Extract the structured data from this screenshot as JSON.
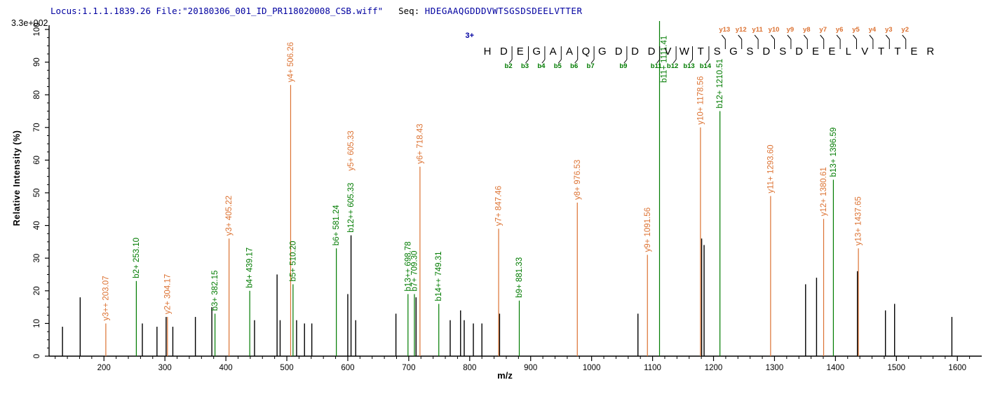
{
  "header": {
    "locus_text": "Locus:1.1.1.1839.26 File:\"20180306_001_ID_PR118020008_CSB.wiff\"",
    "seq_label": "Seq:",
    "seq_value": "HDEGAAQGDDDVWTSGSDSDEELVTTER",
    "max_intensity_label": "3.3e+002"
  },
  "colors": {
    "b_ion": "#007B00",
    "y_ion": "#DC7232",
    "unassigned": "#000000",
    "header_blue": "#0000A0",
    "axis": "#000000"
  },
  "sequence_panel": {
    "charge_label": "3+",
    "residues": [
      "H",
      "D",
      "E",
      "G",
      "A",
      "A",
      "Q",
      "G",
      "D",
      "D",
      "D",
      "V",
      "W",
      "T",
      "S",
      "G",
      "S",
      "D",
      "S",
      "D",
      "E",
      "E",
      "L",
      "V",
      "T",
      "T",
      "E",
      "R"
    ],
    "b_markers": [
      {
        "label": "b2",
        "after_residue": 2
      },
      {
        "label": "b3",
        "after_residue": 3
      },
      {
        "label": "b4",
        "after_residue": 4
      },
      {
        "label": "b5",
        "after_residue": 5
      },
      {
        "label": "b6",
        "after_residue": 6
      },
      {
        "label": "b7",
        "after_residue": 7
      },
      {
        "label": "b9",
        "after_residue": 9
      },
      {
        "label": "b11",
        "after_residue": 11
      },
      {
        "label": "b12",
        "after_residue": 12
      },
      {
        "label": "b13",
        "after_residue": 13
      },
      {
        "label": "b14",
        "after_residue": 14
      }
    ],
    "y_markers": [
      {
        "label": "y13",
        "after_residue": 15
      },
      {
        "label": "y12",
        "after_residue": 16
      },
      {
        "label": "y11",
        "after_residue": 17
      },
      {
        "label": "y10",
        "after_residue": 18
      },
      {
        "label": "y9",
        "after_residue": 19
      },
      {
        "label": "y8",
        "after_residue": 20
      },
      {
        "label": "y7",
        "after_residue": 21
      },
      {
        "label": "y6",
        "after_residue": 22
      },
      {
        "label": "y5",
        "after_residue": 23
      },
      {
        "label": "y4",
        "after_residue": 24
      },
      {
        "label": "y3",
        "after_residue": 25
      },
      {
        "label": "y2",
        "after_residue": 26
      }
    ]
  },
  "chart_data": {
    "type": "bar",
    "subtype": "mass-spectrum-stick-plot",
    "title": "",
    "xlabel": "m/z",
    "ylabel": "Relative  Intensity (%)",
    "xlim": [
      110,
      1640
    ],
    "ylim": [
      0,
      100
    ],
    "x_major_ticks": [
      200,
      300,
      400,
      500,
      600,
      700,
      800,
      900,
      1000,
      1100,
      1200,
      1300,
      1400,
      1500,
      1600
    ],
    "x_minor_tick_step": 20,
    "y_major_ticks": [
      0,
      10,
      20,
      30,
      40,
      50,
      60,
      70,
      80,
      90,
      100
    ],
    "y_minor_tick_step": 2.5,
    "grid": false,
    "legend": "none",
    "peaks": [
      {
        "mz": 132,
        "intensity": 9,
        "series": "unassigned",
        "labels": []
      },
      {
        "mz": 161,
        "intensity": 18,
        "series": "unassigned",
        "labels": []
      },
      {
        "mz": 203.07,
        "intensity": 10,
        "series": "y",
        "labels": [
          {
            "text": "y3++ 203.07",
            "series": "y"
          }
        ]
      },
      {
        "mz": 253.1,
        "intensity": 23,
        "series": "b",
        "labels": [
          {
            "text": "b2+ 253.10",
            "series": "b"
          }
        ]
      },
      {
        "mz": 263,
        "intensity": 10,
        "series": "unassigned",
        "labels": []
      },
      {
        "mz": 287,
        "intensity": 9,
        "series": "unassigned",
        "labels": []
      },
      {
        "mz": 302,
        "intensity": 12,
        "series": "unassigned",
        "labels": []
      },
      {
        "mz": 304.17,
        "intensity": 12,
        "series": "y",
        "labels": [
          {
            "text": "y2+ 304.17",
            "series": "y"
          }
        ]
      },
      {
        "mz": 313,
        "intensity": 9,
        "series": "unassigned",
        "labels": []
      },
      {
        "mz": 350,
        "intensity": 12,
        "series": "unassigned",
        "labels": []
      },
      {
        "mz": 377,
        "intensity": 15,
        "series": "unassigned",
        "labels": []
      },
      {
        "mz": 382.15,
        "intensity": 13,
        "series": "b",
        "labels": [
          {
            "text": "b3+ 382.15",
            "series": "b"
          }
        ]
      },
      {
        "mz": 405.22,
        "intensity": 36,
        "series": "y",
        "labels": [
          {
            "text": "y3+ 405.22",
            "series": "y"
          }
        ]
      },
      {
        "mz": 439.17,
        "intensity": 20,
        "series": "b",
        "labels": [
          {
            "text": "b4+ 439.17",
            "series": "b"
          }
        ]
      },
      {
        "mz": 447,
        "intensity": 11,
        "series": "unassigned",
        "labels": []
      },
      {
        "mz": 484,
        "intensity": 25,
        "series": "unassigned",
        "labels": []
      },
      {
        "mz": 489,
        "intensity": 11,
        "series": "unassigned",
        "labels": []
      },
      {
        "mz": 506.26,
        "intensity": 83,
        "series": "y",
        "labels": [
          {
            "text": "y4+ 506.26",
            "series": "y"
          }
        ]
      },
      {
        "mz": 510.2,
        "intensity": 22,
        "series": "b",
        "labels": [
          {
            "text": "b5+ 510.20",
            "series": "b"
          }
        ]
      },
      {
        "mz": 516,
        "intensity": 11,
        "series": "unassigned",
        "labels": []
      },
      {
        "mz": 529,
        "intensity": 10,
        "series": "unassigned",
        "labels": []
      },
      {
        "mz": 541,
        "intensity": 10,
        "series": "unassigned",
        "labels": []
      },
      {
        "mz": 581.24,
        "intensity": 33,
        "series": "b",
        "labels": [
          {
            "text": "b6+ 581.24",
            "series": "b"
          }
        ]
      },
      {
        "mz": 600,
        "intensity": 19,
        "series": "unassigned",
        "labels": []
      },
      {
        "mz": 605.33,
        "intensity": 37,
        "series": "unassigned",
        "labels": [
          {
            "text": "b12++ 605.33",
            "series": "b"
          },
          {
            "text": "y5+ 605.33",
            "series": "y"
          }
        ]
      },
      {
        "mz": 613,
        "intensity": 11,
        "series": "unassigned",
        "labels": []
      },
      {
        "mz": 679,
        "intensity": 13,
        "series": "unassigned",
        "labels": []
      },
      {
        "mz": 698.78,
        "intensity": 19,
        "series": "b",
        "labels": [
          {
            "text": "b13++ 698.78",
            "series": "b"
          }
        ]
      },
      {
        "mz": 709.3,
        "intensity": 19,
        "series": "b",
        "labels": [
          {
            "text": "b7+ 709.30",
            "series": "b"
          }
        ]
      },
      {
        "mz": 712,
        "intensity": 18,
        "series": "unassigned",
        "labels": []
      },
      {
        "mz": 718.43,
        "intensity": 58,
        "series": "y",
        "labels": [
          {
            "text": "y6+ 718.43",
            "series": "y"
          }
        ]
      },
      {
        "mz": 749.31,
        "intensity": 16,
        "series": "b",
        "labels": [
          {
            "text": "b14++ 749.31",
            "series": "b"
          }
        ]
      },
      {
        "mz": 768,
        "intensity": 11,
        "series": "unassigned",
        "labels": []
      },
      {
        "mz": 785,
        "intensity": 14,
        "series": "unassigned",
        "labels": []
      },
      {
        "mz": 791,
        "intensity": 11,
        "series": "unassigned",
        "labels": []
      },
      {
        "mz": 806,
        "intensity": 10,
        "series": "unassigned",
        "labels": []
      },
      {
        "mz": 820,
        "intensity": 10,
        "series": "unassigned",
        "labels": []
      },
      {
        "mz": 849,
        "intensity": 13,
        "series": "unassigned",
        "labels": []
      },
      {
        "mz": 847.46,
        "intensity": 39,
        "series": "y",
        "labels": [
          {
            "text": "y7+ 847.46",
            "series": "y"
          }
        ]
      },
      {
        "mz": 881.33,
        "intensity": 17,
        "series": "b",
        "labels": [
          {
            "text": "b9+ 881.33",
            "series": "b"
          }
        ]
      },
      {
        "mz": 976.53,
        "intensity": 47,
        "series": "y",
        "labels": [
          {
            "text": "y8+ 976.53",
            "series": "y"
          }
        ]
      },
      {
        "mz": 1076,
        "intensity": 13,
        "series": "unassigned",
        "labels": []
      },
      {
        "mz": 1091.56,
        "intensity": 31,
        "series": "y",
        "labels": [
          {
            "text": "y9+ 1091.56",
            "series": "y"
          }
        ]
      },
      {
        "mz": 1111.41,
        "intensity": 100,
        "series": "b",
        "labels": [
          {
            "text": "b11+ 1111.41",
            "series": "b"
          }
        ]
      },
      {
        "mz": 1178.56,
        "intensity": 70,
        "series": "y",
        "labels": [
          {
            "text": "y10+ 1178.56",
            "series": "y"
          }
        ]
      },
      {
        "mz": 1180.5,
        "intensity": 36,
        "series": "unassigned",
        "labels": []
      },
      {
        "mz": 1184.5,
        "intensity": 34,
        "series": "unassigned",
        "labels": []
      },
      {
        "mz": 1210.51,
        "intensity": 75,
        "series": "b",
        "labels": [
          {
            "text": "b12+ 1210.51",
            "series": "b"
          }
        ]
      },
      {
        "mz": 1293.6,
        "intensity": 49,
        "series": "y",
        "labels": [
          {
            "text": "y11+ 1293.60",
            "series": "y"
          }
        ]
      },
      {
        "mz": 1351,
        "intensity": 22,
        "series": "unassigned",
        "labels": []
      },
      {
        "mz": 1369,
        "intensity": 24,
        "series": "unassigned",
        "labels": []
      },
      {
        "mz": 1380.61,
        "intensity": 42,
        "series": "y",
        "labels": [
          {
            "text": "y12+ 1380.61",
            "series": "y"
          }
        ]
      },
      {
        "mz": 1396.59,
        "intensity": 54,
        "series": "b",
        "labels": [
          {
            "text": "b13+ 1396.59",
            "series": "b"
          }
        ]
      },
      {
        "mz": 1436,
        "intensity": 26,
        "series": "unassigned",
        "labels": []
      },
      {
        "mz": 1437.65,
        "intensity": 33,
        "series": "y",
        "labels": [
          {
            "text": "y13+ 1437.65",
            "series": "y"
          }
        ]
      },
      {
        "mz": 1482,
        "intensity": 14,
        "series": "unassigned",
        "labels": []
      },
      {
        "mz": 1497,
        "intensity": 16,
        "series": "unassigned",
        "labels": []
      },
      {
        "mz": 1591,
        "intensity": 12,
        "series": "unassigned",
        "labels": []
      }
    ]
  }
}
